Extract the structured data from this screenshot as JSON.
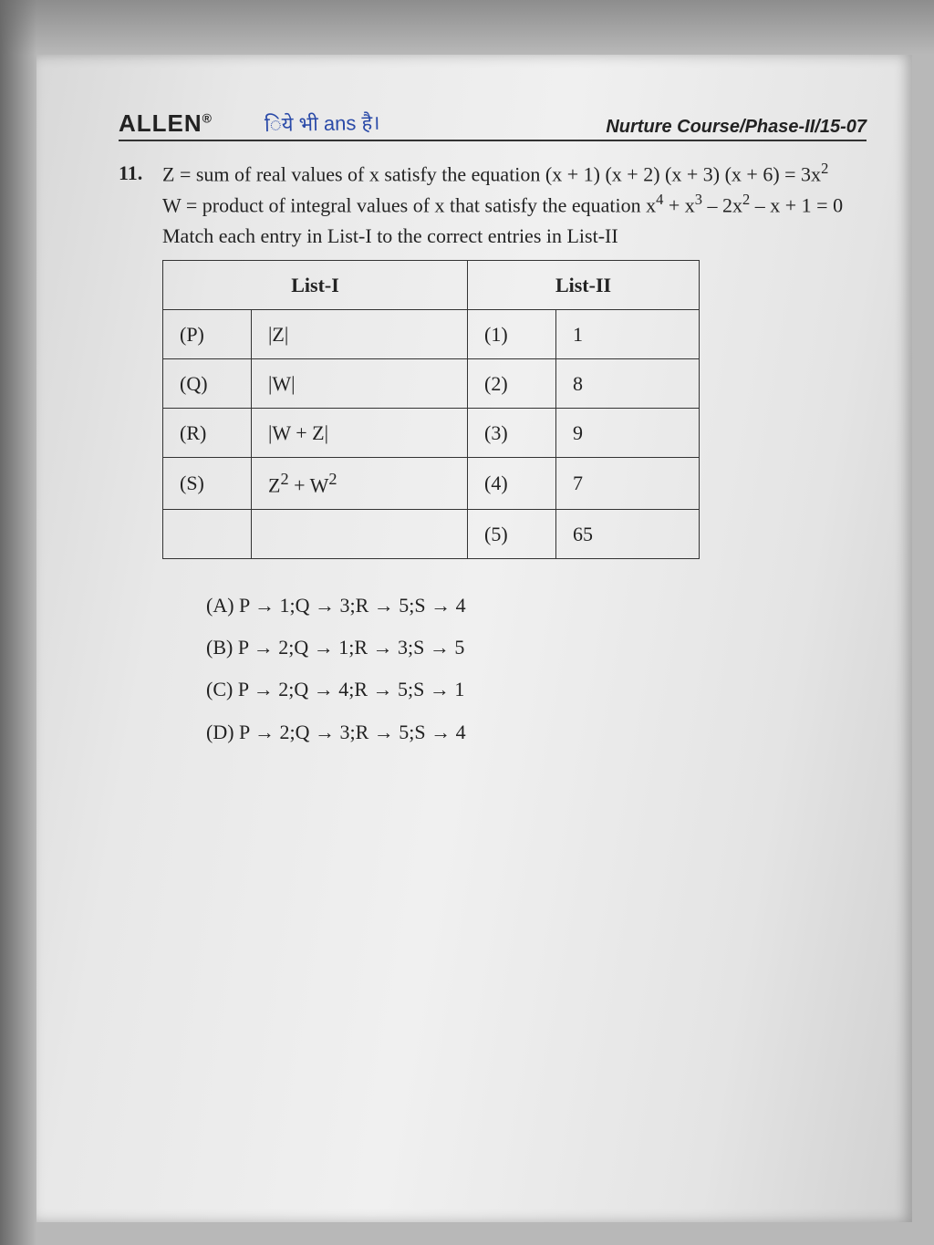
{
  "header": {
    "brand": "ALLEN",
    "reg": "®",
    "handwriting": "िये भी ans है।",
    "course": "Nurture Course/Phase-II/15-07"
  },
  "question": {
    "number": "11.",
    "line1_pre": "Z = sum of real values of x satisfy the equation (x + 1) (x + 2) (x + 3) (x + 6) = 3x",
    "line1_sup": "2",
    "line2_pre": "W = product of integral values of x that satisfy the equation x",
    "line2_sup1": "4",
    "line2_mid1": " + x",
    "line2_sup2": "3",
    "line2_mid2": " – 2x",
    "line2_sup3": "2",
    "line2_tail": " – x + 1 = 0",
    "line3": "Match each entry in List-I to the correct entries in List-II"
  },
  "table": {
    "h1": "List-I",
    "h2": "List-II",
    "rows": [
      {
        "lab": "(P)",
        "expr": "|Z|",
        "idx": "(1)",
        "val": "1"
      },
      {
        "lab": "(Q)",
        "expr": "|W|",
        "idx": "(2)",
        "val": "8"
      },
      {
        "lab": "(R)",
        "expr": "|W + Z|",
        "idx": "(3)",
        "val": "9"
      },
      {
        "lab": "(S)",
        "expr_html": "Z<sup>2</sup> + W<sup>2</sup>",
        "idx": "(4)",
        "val": "7"
      },
      {
        "lab": "",
        "expr": "",
        "idx": "(5)",
        "val": "65"
      }
    ]
  },
  "options": {
    "A": "(A) P → 1;Q → 3;R → 5;S → 4",
    "B": "(B) P → 2;Q → 1;R → 3;S → 5",
    "C": "(C) P → 2;Q → 4;R → 5;S → 1",
    "D": "(D) P → 2;Q → 3;R → 5;S → 4"
  }
}
